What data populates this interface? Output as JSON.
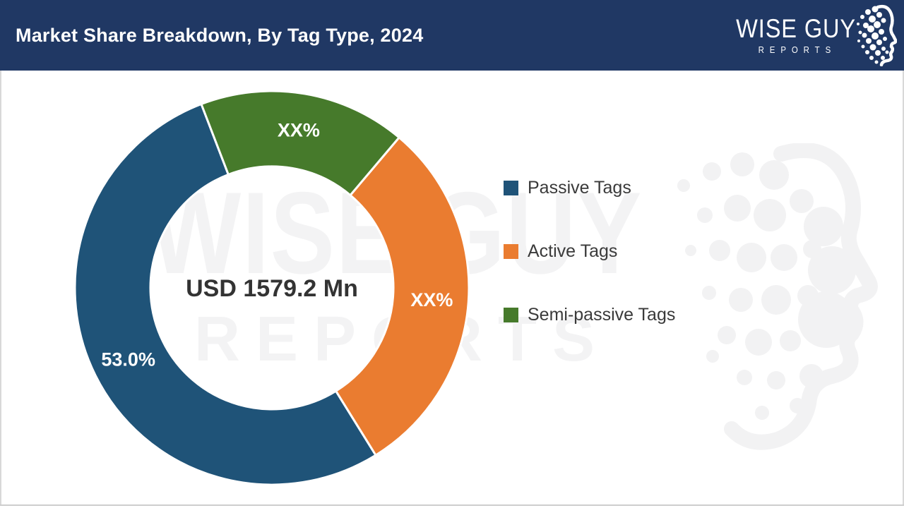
{
  "header": {
    "title": "Market Share Breakdown, By Tag Type, 2024",
    "logo": {
      "line1": "WISE GUY",
      "line2": "REPORTS"
    }
  },
  "watermark": {
    "line1": "WISE GUY",
    "line2": "REPORTS"
  },
  "chart_data": {
    "type": "pie",
    "subtype": "donut",
    "title": "Market Share Breakdown, By Tag Type, 2024",
    "center_label": "USD 1579.2 Mn",
    "start_angle_deg": 111,
    "direction": "counterclockwise",
    "outer_radius_px": 279,
    "inner_radius_px": 172,
    "label_radius_px": 227,
    "legend_position": "right",
    "segments": [
      {
        "name": "Passive Tags",
        "display_label": "53.0%",
        "value_pct": 53.0,
        "color": "#1F5378"
      },
      {
        "name": "Active Tags",
        "display_label": "XX%",
        "value_pct": 30.0,
        "color": "#EA7C30"
      },
      {
        "name": "Semi-passive Tags",
        "display_label": "XX%",
        "value_pct": 17.0,
        "color": "#467A2B"
      }
    ]
  },
  "colors": {
    "header_bg": "#203864",
    "header_text": "#FFFFFF",
    "wedge_label_text": "#FFFFFF",
    "center_text": "#333333",
    "legend_text": "#3A3A3A",
    "watermark": "#F3F3F4",
    "frame_border": "#CDCDCD",
    "passive_blue": "#1F5378",
    "active_orange": "#EA7C30",
    "semi_passive_green": "#467A2B"
  }
}
